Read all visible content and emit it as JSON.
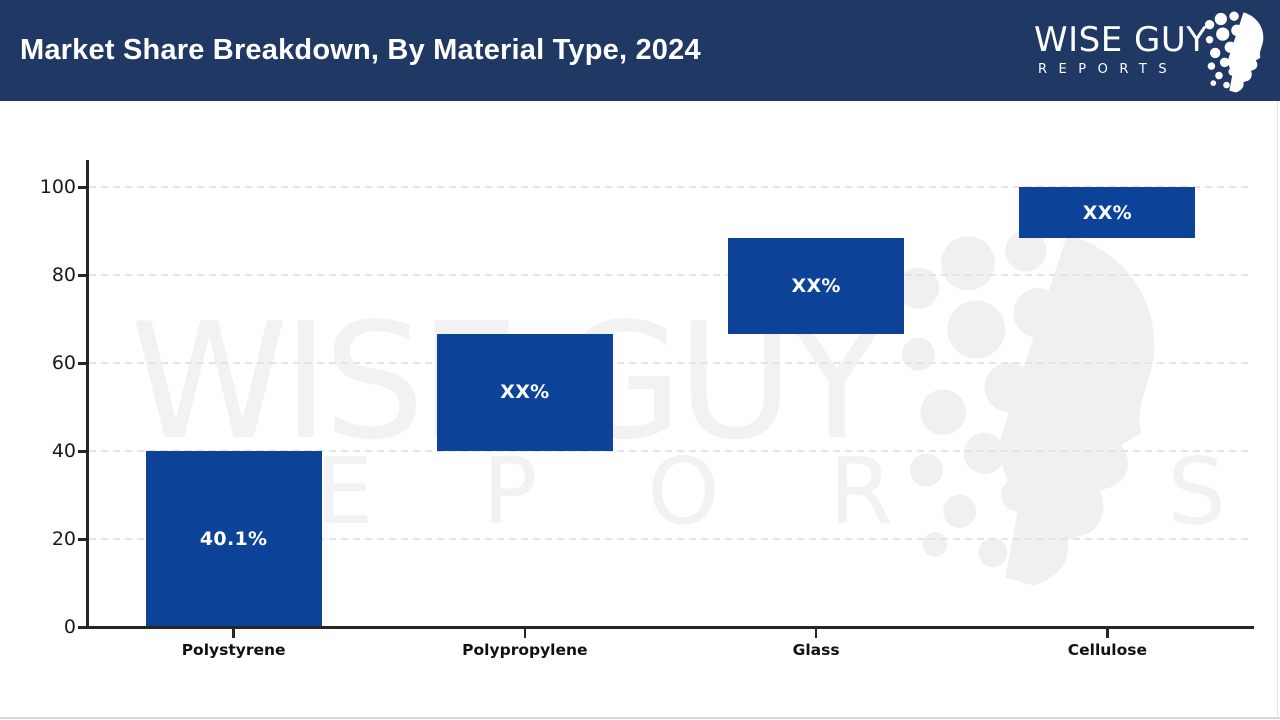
{
  "header": {
    "title": "Market Share Breakdown, By Material Type, 2024",
    "logo": {
      "line1": "WISE GUY",
      "line2": "REPORTS"
    }
  },
  "watermark": {
    "line1": "WISE GUY",
    "line2": "P O R T S",
    "line2_full": "R E P O R T S"
  },
  "chart_data": {
    "type": "bar",
    "subtype": "floating-waterfall",
    "title": "Market Share Breakdown, By Material Type, 2024",
    "categories": [
      "Polystyrene",
      "Polypropylene",
      "Glass",
      "Cellulose"
    ],
    "segments": [
      {
        "category": "Polystyrene",
        "start": 0,
        "end": 40.1,
        "label": "40.1%"
      },
      {
        "category": "Polypropylene",
        "start": 40.1,
        "end": 66.6,
        "label": "XX%"
      },
      {
        "category": "Glass",
        "start": 66.6,
        "end": 88.4,
        "label": "XX%"
      },
      {
        "category": "Cellulose",
        "start": 88.4,
        "end": 100,
        "label": "XX%"
      }
    ],
    "xlabel": "",
    "ylabel": "",
    "ylim": [
      0,
      100
    ],
    "yticks": [
      0,
      20,
      40,
      60,
      80,
      100
    ],
    "grid": "horizontal-dashed",
    "legend": "none"
  },
  "colors": {
    "header_bg": "#1f3864",
    "bar": "#0d4299",
    "bar_label": "#ffffff",
    "axis": "#262626",
    "gridline": "#e4e4e4",
    "watermark": "#f2f2f2"
  }
}
